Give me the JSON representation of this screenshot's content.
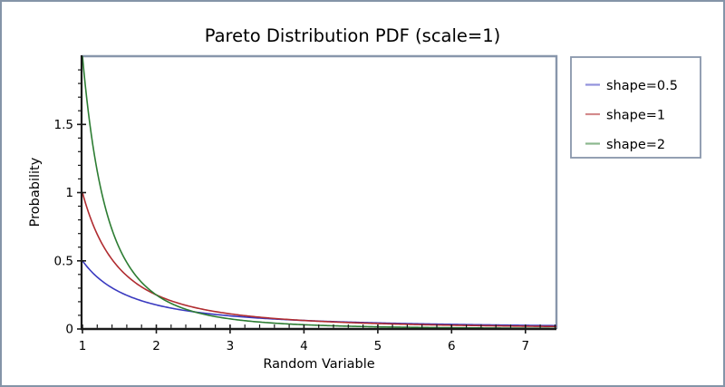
{
  "window": {
    "background": "#ffffff",
    "outer_border_color": "#8494a8"
  },
  "chart_data": {
    "type": "line",
    "title": "Pareto Distribution PDF (scale=1)",
    "xlabel": "Random Variable",
    "ylabel": "Probability",
    "x_range": [
      1,
      7.42
    ],
    "y_range": [
      0,
      2.0
    ],
    "x_major_ticks": [
      1,
      2,
      3,
      4,
      5,
      6,
      7
    ],
    "x_major_tick_labels": [
      "1",
      "2",
      "3",
      "4",
      "5",
      "6",
      "7"
    ],
    "x_minor_tick_step": 0.2,
    "y_major_ticks": [
      0,
      0.5,
      1,
      1.5
    ],
    "y_major_tick_labels": [
      "0",
      "0.5",
      "1",
      "1.5"
    ],
    "y_minor_tick_step": 0.1,
    "grid": false,
    "legend_position": "outside-top-right",
    "axis_color": "#1a1a1a",
    "frame_color": "#8896ab",
    "series": [
      {
        "name": "shape=0.5",
        "color": "#3a3ac0",
        "scale": 1,
        "shape": 0.5,
        "formula": "f(x) = shape / x^(shape+1)",
        "sample_points": [
          [
            1,
            0.5
          ],
          [
            1.5,
            0.272
          ],
          [
            2,
            0.177
          ],
          [
            2.5,
            0.126
          ],
          [
            3,
            0.096
          ],
          [
            4,
            0.0625
          ],
          [
            5,
            0.0447
          ],
          [
            6,
            0.034
          ],
          [
            7,
            0.027
          ]
        ]
      },
      {
        "name": "shape=1",
        "color": "#b02c30",
        "scale": 1,
        "shape": 1,
        "formula": "f(x) = shape / x^(shape+1)",
        "sample_points": [
          [
            1,
            1.0
          ],
          [
            1.5,
            0.444
          ],
          [
            2,
            0.25
          ],
          [
            2.5,
            0.16
          ],
          [
            3,
            0.111
          ],
          [
            4,
            0.0625
          ],
          [
            5,
            0.04
          ],
          [
            6,
            0.0278
          ],
          [
            7,
            0.0204
          ]
        ]
      },
      {
        "name": "shape=2",
        "color": "#2d7d33",
        "scale": 1,
        "shape": 2,
        "formula": "f(x) = shape / x^(shape+1)",
        "sample_points": [
          [
            1,
            2.0
          ],
          [
            1.5,
            0.593
          ],
          [
            2,
            0.25
          ],
          [
            2.5,
            0.128
          ],
          [
            3,
            0.074
          ],
          [
            4,
            0.0313
          ],
          [
            5,
            0.016
          ],
          [
            6,
            0.0093
          ],
          [
            7,
            0.0058
          ]
        ]
      }
    ],
    "legend_entries": [
      "shape=0.5",
      "shape=1",
      "shape=2"
    ],
    "legend_swatch_opacity": 0.55
  }
}
